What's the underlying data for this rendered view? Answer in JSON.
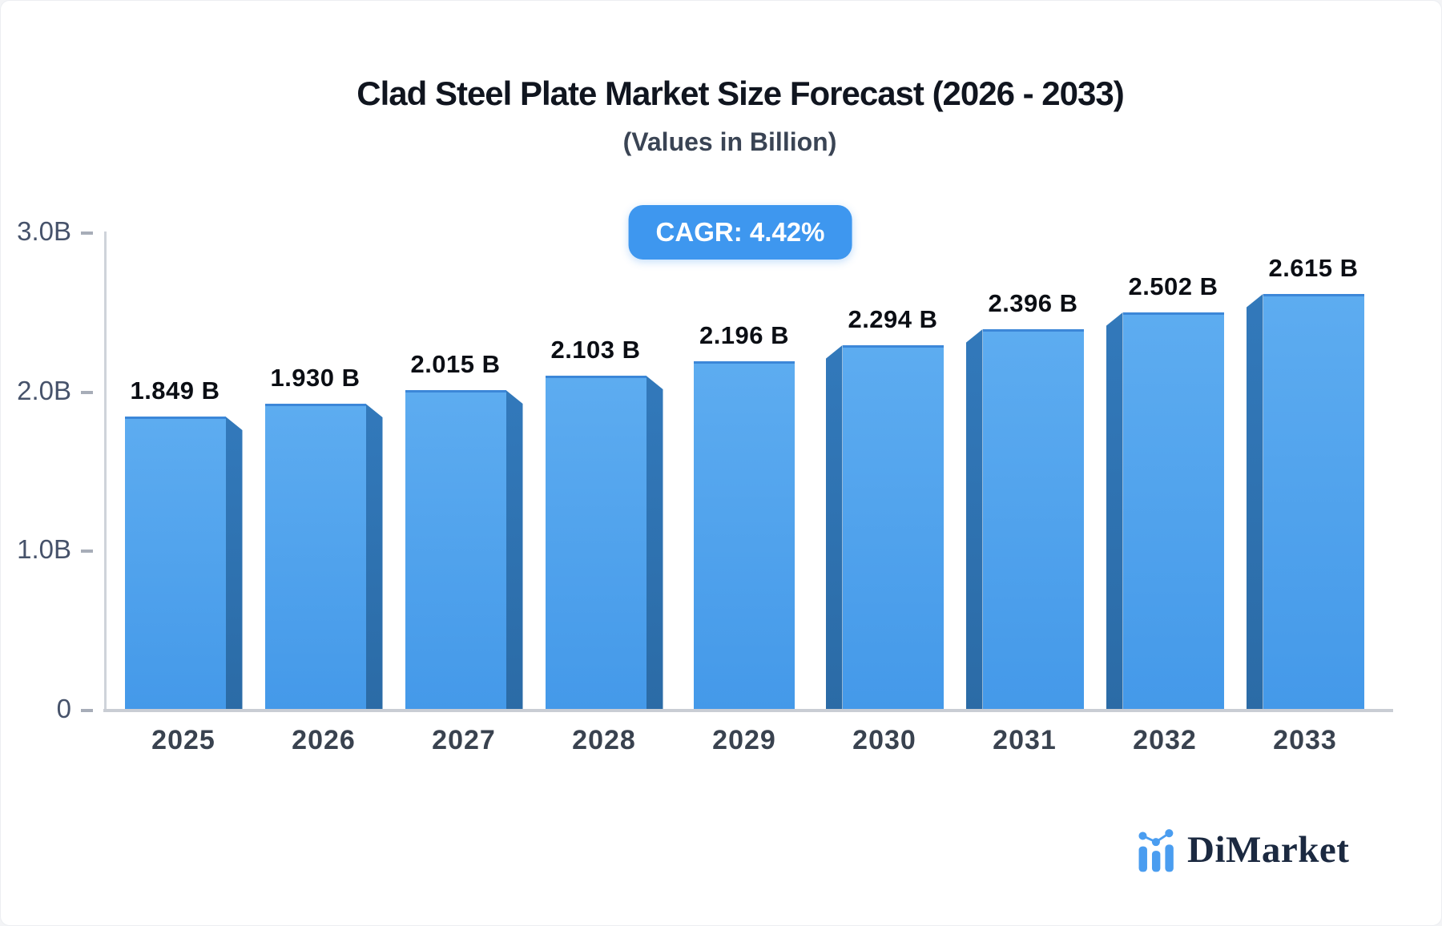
{
  "chart_data": {
    "type": "bar",
    "title": "Clad Steel Plate Market Size Forecast (2026 - 2033)",
    "subtitle": "(Values in Billion)",
    "cagr": "4.42%",
    "cagr_label": "CAGR: 4.42%",
    "categories": [
      "2025",
      "2026",
      "2027",
      "2028",
      "2029",
      "2030",
      "2031",
      "2032",
      "2033"
    ],
    "values": [
      1.849,
      1.93,
      2.015,
      2.103,
      2.196,
      2.294,
      2.396,
      2.502,
      2.615
    ],
    "value_labels": [
      "1.849 B",
      "1.930 B",
      "2.015 B",
      "2.103 B",
      "2.196 B",
      "2.294 B",
      "2.396 B",
      "2.502 B",
      "2.615 B"
    ],
    "xlabel": "",
    "ylabel": "",
    "ylim": [
      0,
      3
    ],
    "yticks": [
      {
        "v": 0,
        "label": "0"
      },
      {
        "v": 1,
        "label": "1.0B"
      },
      {
        "v": 2,
        "label": "2.0B"
      },
      {
        "v": 3,
        "label": "3.0B"
      }
    ],
    "grid": false,
    "legend": "none",
    "bar_style": "3d-center-perspective",
    "colors": {
      "bar_face_light": "#5dacf0",
      "bar_face": "#4499e9",
      "bar_top_edge": "#3c87d8",
      "bar_side_light": "#3279bb",
      "bar_side": "#2b6ba6",
      "axis": "#cfd3da",
      "baseline": "#c9cdd4",
      "tick": "#a7adb8",
      "tick_label": "#46526a",
      "x_label": "#39424f",
      "value_label": "#0b0e14",
      "badge_bg": "#3e97ef",
      "badge_text": "#ffffff"
    }
  },
  "footer": {
    "logo_text": "DiMarket",
    "logo_icon": "bar-chart-logo-icon",
    "logo_color": "#4a9df0"
  }
}
